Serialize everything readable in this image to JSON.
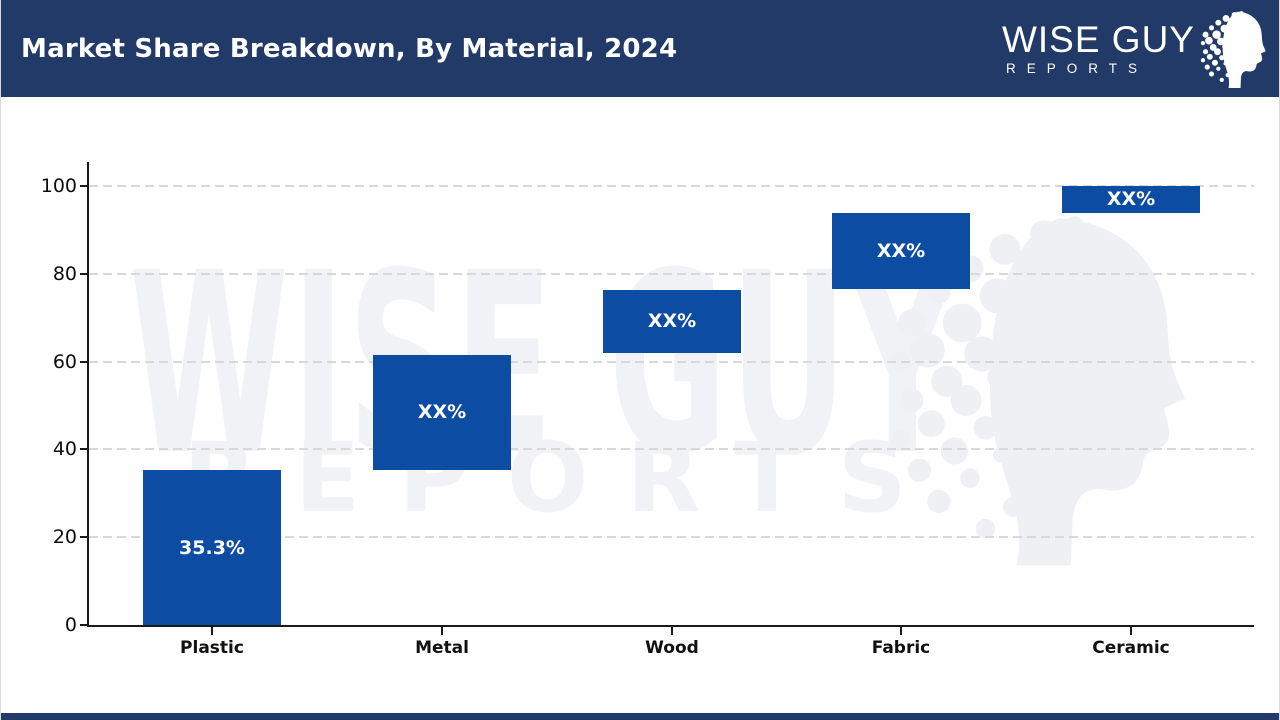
{
  "header": {
    "title": "Market Share Breakdown, By Material, 2024",
    "logo": {
      "line1": "WISE GUY",
      "line2": "REPORTS"
    }
  },
  "watermark": {
    "line1": "WISE GUY",
    "line2": "REPORTS"
  },
  "chart_data": {
    "type": "bar",
    "subtype": "floating-waterfall-segments",
    "title": "Market Share Breakdown, By Material, 2024",
    "categories": [
      "Plastic",
      "Metal",
      "Wood",
      "Fabric",
      "Ceramic"
    ],
    "segments": [
      {
        "category": "Plastic",
        "start": 0,
        "end": 35.3,
        "label": "35.3%"
      },
      {
        "category": "Metal",
        "start": 35.4,
        "end": 61.6,
        "label": "XX%"
      },
      {
        "category": "Wood",
        "start": 62.0,
        "end": 76.3,
        "label": "XX%"
      },
      {
        "category": "Fabric",
        "start": 76.5,
        "end": 93.9,
        "label": "XX%"
      },
      {
        "category": "Ceramic",
        "start": 93.9,
        "end": 100.0,
        "label": "XX%"
      }
    ],
    "xlabel": "",
    "ylabel": "",
    "ylim": [
      0,
      100
    ],
    "yticks": [
      0,
      20,
      40,
      60,
      80,
      100
    ],
    "grid": "horizontal-dashed",
    "legend": "none",
    "bar_color": "#0C4CA3",
    "bar_label_color": "#ffffff"
  },
  "colors": {
    "header_bg": "#223A68",
    "footer_bg": "#223A68",
    "bar": "#0C4CA3",
    "grid": "#d8d8d8",
    "axis": "#1a1a1a",
    "watermark": "#f0f2f5",
    "title_text": "#ffffff"
  }
}
